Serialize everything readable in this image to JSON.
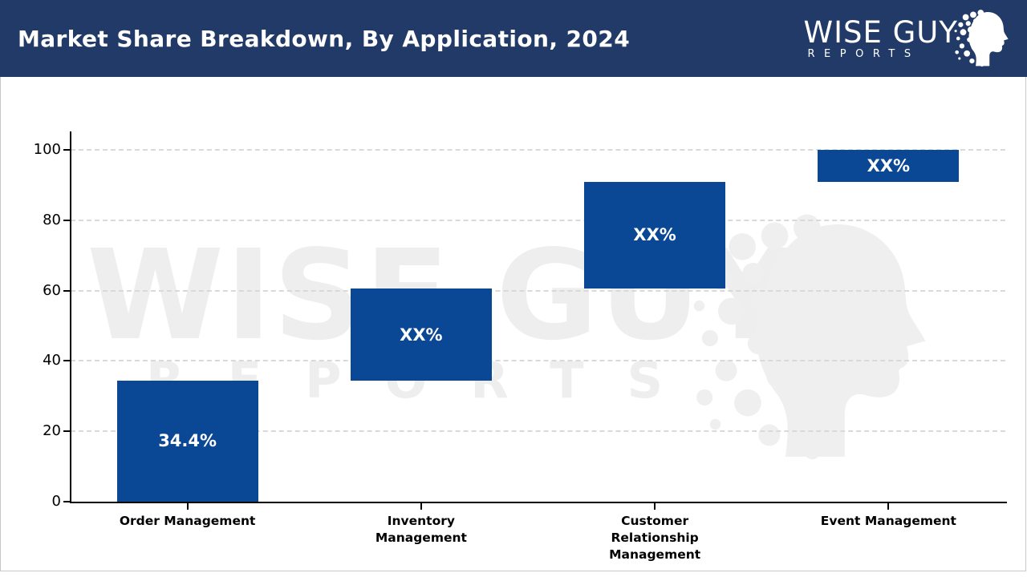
{
  "header": {
    "title": "Market Share Breakdown, By Application, 2024",
    "logo": {
      "wordmark": "WISE GUY",
      "subtext": "REPORTS"
    }
  },
  "watermark": {
    "wordmark": "WISE GUY",
    "subtext": "REPORTS"
  },
  "chart_data": {
    "type": "bar",
    "subtype": "waterfall",
    "title": "Market Share Breakdown, By Application, 2024",
    "categories": [
      "Order Management",
      "Inventory Management",
      "Customer Relationship Management",
      "Event Management"
    ],
    "categories_display": [
      "Order Management",
      "Inventory\nManagement",
      "Customer\nRelationship\nManagement",
      "Event Management"
    ],
    "segments": [
      {
        "category": "Order Management",
        "start": 0,
        "end": 34.4,
        "value": 34.4,
        "label": "34.4%"
      },
      {
        "category": "Inventory Management",
        "start": 34.4,
        "end": 60.5,
        "value": 26.1,
        "label": "XX%"
      },
      {
        "category": "Customer Relationship Management",
        "start": 60.5,
        "end": 91.0,
        "value": 30.5,
        "label": "XX%"
      },
      {
        "category": "Event Management",
        "start": 91.0,
        "end": 100,
        "value": 9.0,
        "label": "XX%"
      }
    ],
    "ylim": [
      0,
      100
    ],
    "yticks": [
      0,
      20,
      40,
      60,
      80,
      100
    ],
    "xlabel": "",
    "ylabel": "",
    "grid": "horizontal-dashed",
    "legend": "none",
    "colors": {
      "bar": "#0a4795",
      "bar_label": "#ffffff",
      "grid": "#d9d9d9",
      "axis": "#000000",
      "header_bg": "#213a67",
      "watermark": "#eeeeee"
    }
  }
}
